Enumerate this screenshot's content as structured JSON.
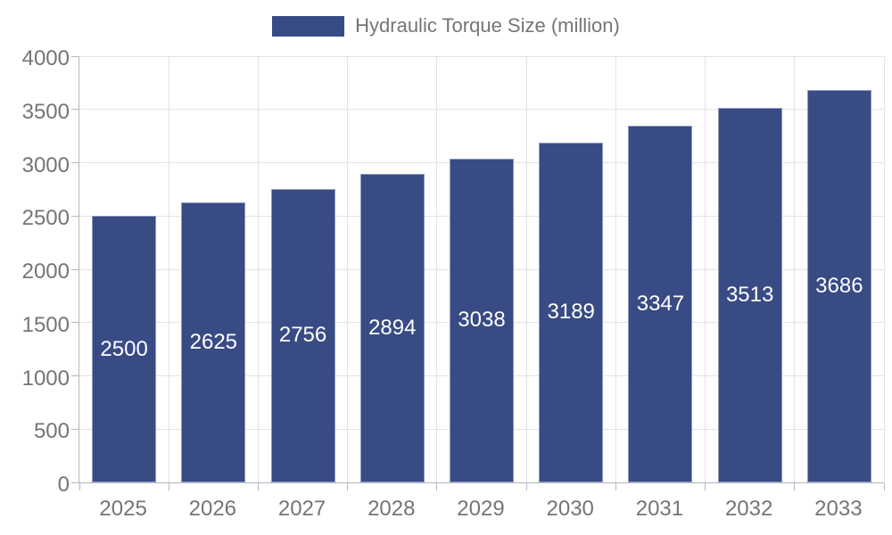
{
  "legend": {
    "label": "Hydraulic Torque Size (million)"
  },
  "chart_data": {
    "type": "bar",
    "title": "",
    "series_name": "Hydraulic Torque Size (million)",
    "categories": [
      "2025",
      "2026",
      "2027",
      "2028",
      "2029",
      "2030",
      "2031",
      "2032",
      "2033"
    ],
    "values": [
      2500,
      2625,
      2756,
      2894,
      3038,
      3189,
      3347,
      3513,
      3686
    ],
    "xlabel": "",
    "ylabel": "",
    "ylim": [
      0,
      4000
    ],
    "ytick_step": 500,
    "grid": true,
    "legend_position": "top-center",
    "value_labels": "inside-center",
    "colors": {
      "bar_fill": "#394b85",
      "bar_border": "#8f99bd",
      "grid_line": "#e3e3e3",
      "axis_line": "#b4b7c2",
      "tick_label": "#757575",
      "value_label": "#ffffff",
      "background": "#ffffff"
    }
  }
}
